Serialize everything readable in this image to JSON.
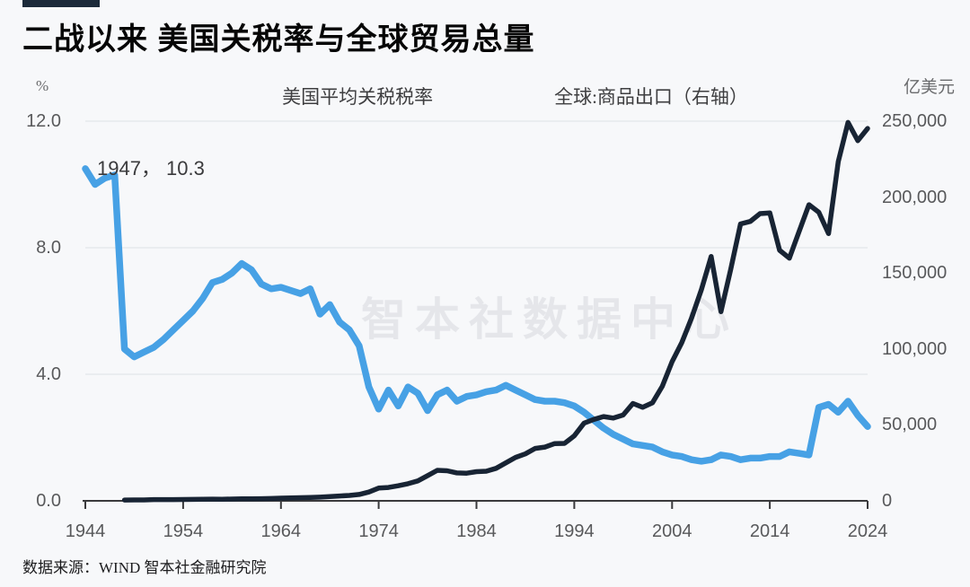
{
  "title": "二战以来 美国关税率与全球贸易总量",
  "units": {
    "left": "%",
    "right": "亿美元"
  },
  "legend": [
    {
      "label": "美国平均关税税率",
      "color": "#47a1e5"
    },
    {
      "label": "全球:商品出口（右轴）",
      "color": "#182434"
    }
  ],
  "annotation": {
    "text": "1947， 10.3"
  },
  "watermark": "智本社数据中心",
  "source": "数据来源：WIND 智本社金融研究院",
  "chart_data": {
    "type": "line",
    "title": "二战以来 美国关税率与全球贸易总量",
    "grid": "horizontal-only",
    "legend_position": "top-center",
    "x_range": [
      1944,
      2024
    ],
    "x_axis": {
      "ticks": [
        {
          "label": "1944",
          "value": 1944
        },
        {
          "label": "1954",
          "value": 1954
        },
        {
          "label": "1964",
          "value": 1964
        },
        {
          "label": "1974",
          "value": 1974
        },
        {
          "label": "1984",
          "value": 1984
        },
        {
          "label": "1994",
          "value": 1994
        },
        {
          "label": "2004",
          "value": 2004
        },
        {
          "label": "2014",
          "value": 2014
        },
        {
          "label": "2024",
          "value": 2024
        }
      ]
    },
    "left_axis": {
      "unit": "%",
      "range": [
        0,
        12
      ],
      "ticks": [
        {
          "label": "12.0",
          "value": 12
        },
        {
          "label": "8.0",
          "value": 8
        },
        {
          "label": "4.0",
          "value": 4
        },
        {
          "label": "0.0",
          "value": 0
        }
      ]
    },
    "right_axis": {
      "unit": "亿美元",
      "range": [
        0,
        250000
      ],
      "ticks": [
        {
          "label": "250,000",
          "value": 250000
        },
        {
          "label": "200,000",
          "value": 200000
        },
        {
          "label": "150,000",
          "value": 150000
        },
        {
          "label": "100,000",
          "value": 100000
        },
        {
          "label": "50,000",
          "value": 50000
        },
        {
          "label": "0",
          "value": 0
        }
      ]
    },
    "series": [
      {
        "name": "美国平均关税税率",
        "axis": "left",
        "color": "#47a1e5",
        "stroke_width": 7.5,
        "x_start": 1944,
        "values": [
          10.5,
          10.0,
          10.2,
          10.3,
          4.8,
          4.55,
          4.7,
          4.85,
          5.1,
          5.4,
          5.7,
          6.0,
          6.4,
          6.9,
          7.0,
          7.2,
          7.5,
          7.3,
          6.85,
          6.7,
          6.75,
          6.65,
          6.55,
          6.7,
          5.9,
          6.2,
          5.65,
          5.4,
          4.9,
          3.6,
          2.9,
          3.5,
          3.0,
          3.6,
          3.4,
          2.85,
          3.35,
          3.5,
          3.15,
          3.3,
          3.35,
          3.45,
          3.5,
          3.65,
          3.5,
          3.35,
          3.2,
          3.15,
          3.15,
          3.1,
          3.0,
          2.8,
          2.55,
          2.3,
          2.1,
          1.95,
          1.8,
          1.75,
          1.7,
          1.55,
          1.45,
          1.4,
          1.3,
          1.25,
          1.3,
          1.45,
          1.4,
          1.3,
          1.35,
          1.35,
          1.4,
          1.4,
          1.55,
          1.5,
          1.45,
          2.95,
          3.05,
          2.8,
          3.15,
          2.7,
          2.35
        ]
      },
      {
        "name": "全球:商品出口（右轴）",
        "axis": "right",
        "color": "#182434",
        "stroke_width": 5.5,
        "x_start": 1948,
        "values": [
          550,
          570,
          610,
          820,
          800,
          820,
          860,
          950,
          1050,
          1130,
          1080,
          1160,
          1300,
          1360,
          1430,
          1560,
          1750,
          1890,
          2060,
          2170,
          2420,
          2760,
          3170,
          3520,
          4180,
          5800,
          8400,
          8800,
          9950,
          11300,
          13100,
          16600,
          20100,
          19800,
          18400,
          18200,
          19200,
          19500,
          21400,
          25000,
          28600,
          30900,
          34500,
          35400,
          37700,
          37800,
          42800,
          51200,
          53600,
          55500,
          54500,
          56500,
          64100,
          61600,
          64600,
          75400,
          91600,
          104200,
          120400,
          139000,
          160900,
          124600,
          152500,
          182300,
          184000,
          189100,
          189600,
          165000,
          159800,
          177500,
          195000,
          190100,
          176000,
          223300,
          249200,
          237200,
          245200
        ]
      }
    ],
    "annotations": [
      {
        "x": 1947,
        "y": 10.3,
        "text": "1947， 10.3"
      }
    ]
  }
}
